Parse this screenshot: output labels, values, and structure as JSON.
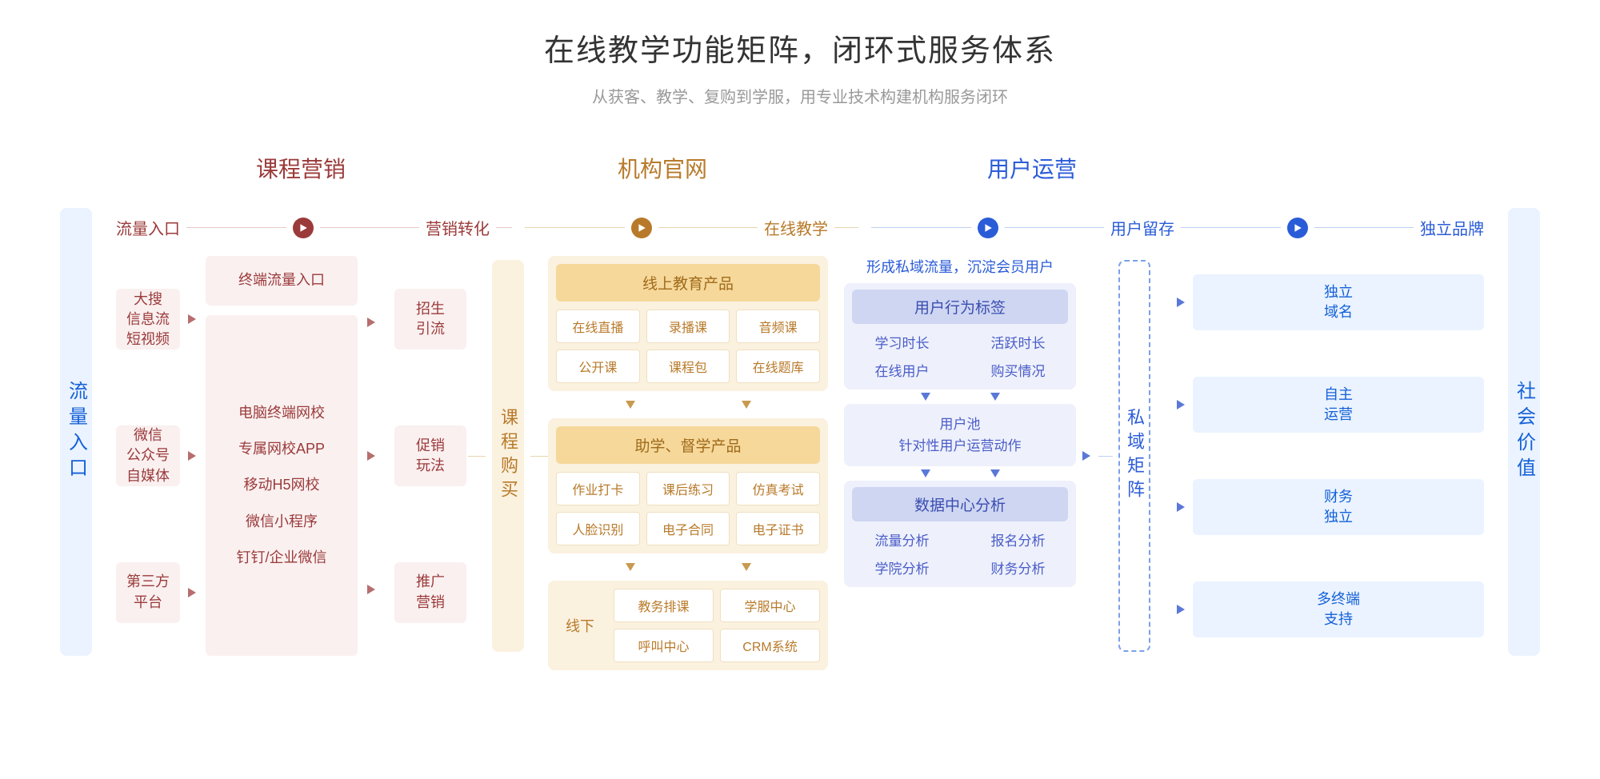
{
  "colors": {
    "red": "#9b3a3a",
    "red_bg": "#faf0f0",
    "brown": "#b87a2a",
    "brown_bg": "#fbf1df",
    "brown_chip_bg": "#ffffff",
    "brown_title_bg": "#f5d89a",
    "blue": "#2b5cd8",
    "blue_bg": "#eef1fb",
    "blue_title_bg": "#cfd6f2",
    "blue_light_bg": "#eaf3ff",
    "title": "#333333",
    "subtitle": "#999999"
  },
  "title": "在线教学功能矩阵，闭环式服务体系",
  "subtitle": "从获客、教学、复购到学服，用专业技术构建机构服务闭环",
  "sections": {
    "marketing": "课程营销",
    "official": "机构官网",
    "ops": "用户运营"
  },
  "left_pillar": "流量入口",
  "right_pillar": "社会价值",
  "subheads": [
    "流量入口",
    "营销转化",
    "在线教学",
    "用户留存",
    "独立品牌"
  ],
  "red": {
    "entries": [
      "大搜\n信息流\n短视频",
      "微信\n公众号\n自媒体",
      "第三方\n平台"
    ],
    "channels_top": "终端流量入口",
    "channels": [
      "电脑终端网校",
      "专属网校APP",
      "移动H5网校",
      "微信小程序",
      "钉钉/企业微信"
    ],
    "conversions": [
      "招生\n引流",
      "促销\n玩法",
      "推广\n营销"
    ]
  },
  "brown_pillar": "课程购买",
  "brown": {
    "group1_title": "线上教育产品",
    "group1_items": [
      "在线直播",
      "录播课",
      "音频课",
      "公开课",
      "课程包",
      "在线题库"
    ],
    "group2_title": "助学、督学产品",
    "group2_items": [
      "作业打卡",
      "课后练习",
      "仿真考试",
      "人脸识别",
      "电子合同",
      "电子证书"
    ],
    "offline_label": "线下",
    "offline_items": [
      "教务排课",
      "学服中心",
      "呼叫中心",
      "CRM系统"
    ]
  },
  "blue": {
    "caption": "形成私域流量，沉淀会员用户",
    "group1_title": "用户行为标签",
    "group1_items": [
      "学习时长",
      "活跃时长",
      "在线用户",
      "购买情况"
    ],
    "mid_title": "用户池",
    "mid_sub": "针对性用户运营动作",
    "group3_title": "数据中心分析",
    "group3_items": [
      "流量分析",
      "报名分析",
      "学院分析",
      "财务分析"
    ]
  },
  "dashed_pillar": "私域矩阵",
  "right_boxes": [
    "独立\n域名",
    "自主\n运营",
    "财务\n独立",
    "多终端\n支持"
  ]
}
